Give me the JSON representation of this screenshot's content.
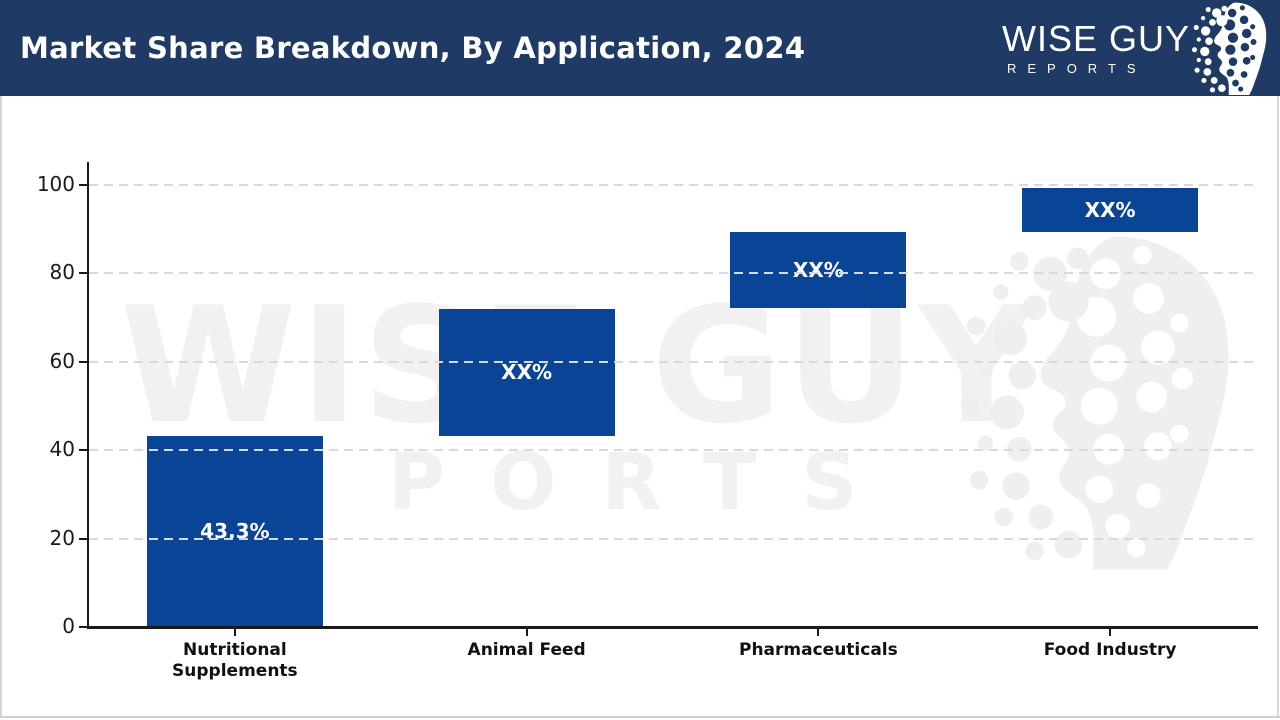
{
  "header": {
    "title": "Market Share Breakdown, By Application, 2024",
    "logo": {
      "line1": "WISE GUY",
      "line2": "REPORTS"
    },
    "bg_color": "#1f3a64"
  },
  "watermark": {
    "line1": "WISE GUY",
    "line2": "PORTS"
  },
  "chart_data": {
    "type": "bar",
    "variant": "waterfall",
    "title": "Market Share Breakdown, By Application, 2024",
    "categories": [
      "Nutritional Supplements",
      "Animal Feed",
      "Pharmaceuticals",
      "Food Industry"
    ],
    "segments": [
      {
        "category": "Nutritional Supplements",
        "start": 0,
        "end": 43.3,
        "label": "43.3%"
      },
      {
        "category": "Animal Feed",
        "start": 43.3,
        "end": 71.9,
        "label": "XX%"
      },
      {
        "category": "Pharmaceuticals",
        "start": 72.1,
        "end": 89.3,
        "label": "XX%"
      },
      {
        "category": "Food Industry",
        "start": 89.4,
        "end": 99.4,
        "label": "XX%"
      }
    ],
    "xlabel": "",
    "ylabel": "",
    "yticks": [
      0,
      20,
      40,
      60,
      80,
      100
    ],
    "ylim": [
      0,
      105
    ],
    "grid": "horizontal-dashed",
    "legend": "none",
    "bar_color": "#0a4496",
    "bar_label_color": "#ffffff",
    "grid_color": "#d9d9d9"
  }
}
